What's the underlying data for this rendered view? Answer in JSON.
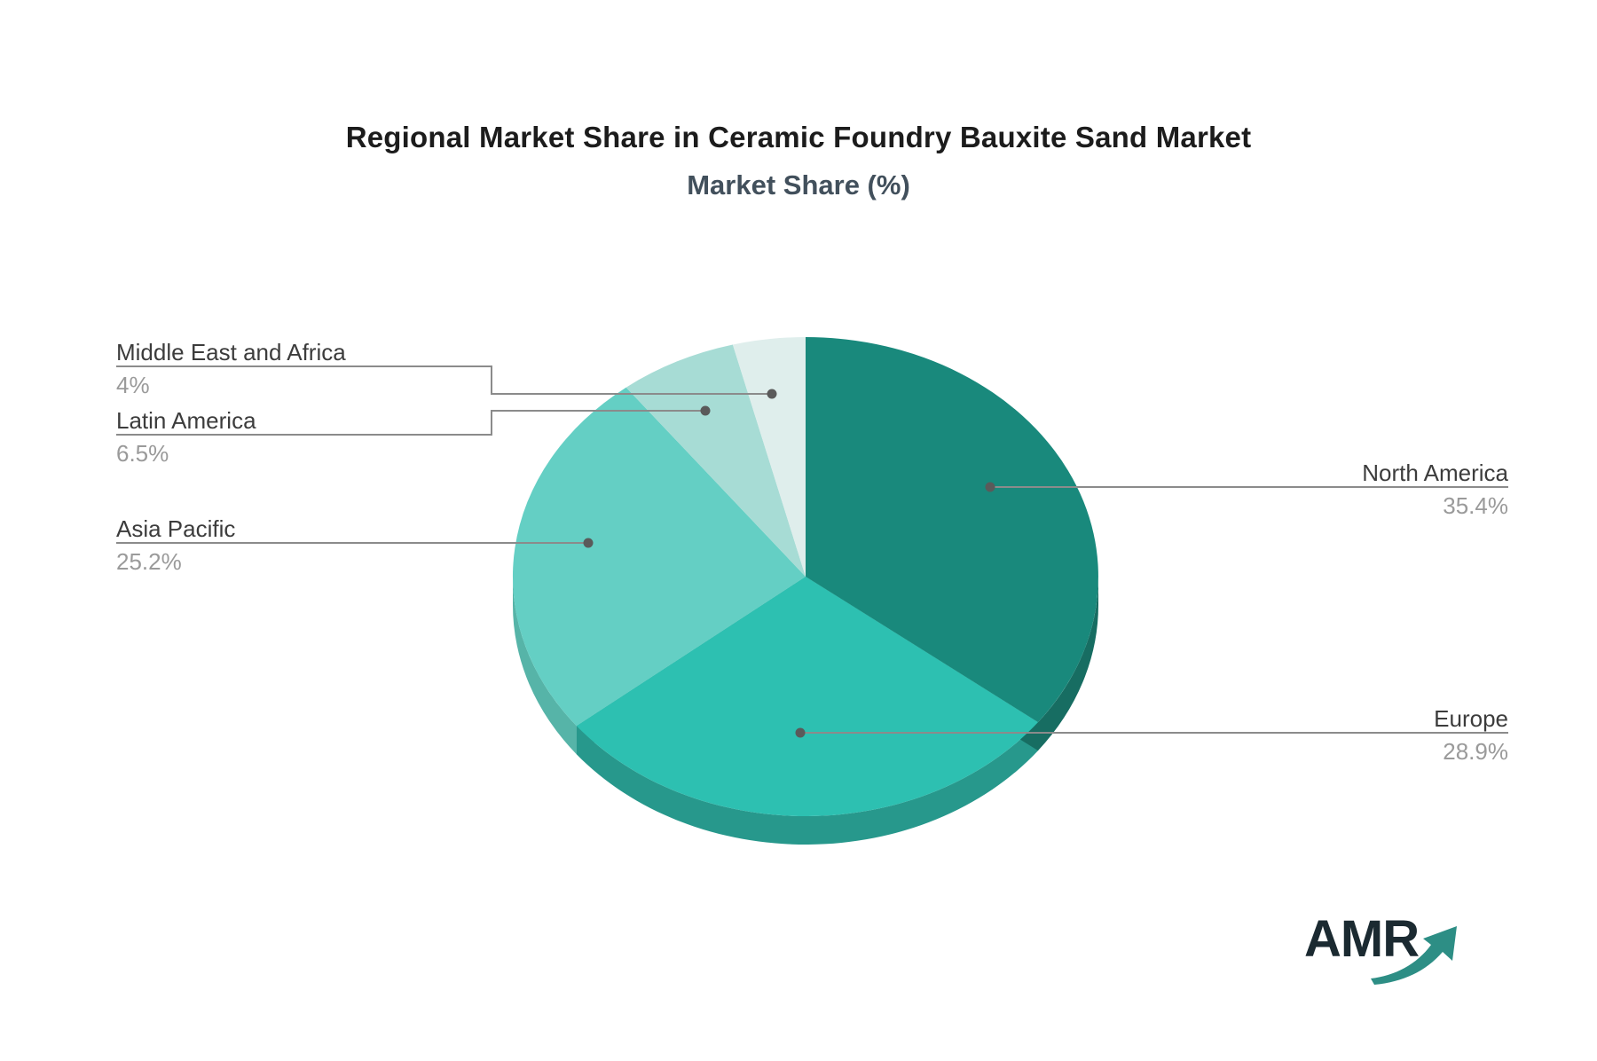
{
  "chart": {
    "title": "Regional Market Share in Ceramic Foundry Bauxite Sand Market",
    "subtitle": "Market Share (%)"
  },
  "chart_data": {
    "type": "pie",
    "title": "Regional Market Share in Ceramic Foundry Bauxite Sand Market",
    "subtitle": "Market Share (%)",
    "unit": "%",
    "effect": "3d",
    "start_angle_deg": 0,
    "direction": "clockwise",
    "slices": [
      {
        "label": "North America",
        "value": 35.4,
        "value_label": "35.4%",
        "color": "#19897c",
        "side_color": "#176d62"
      },
      {
        "label": "Europe",
        "value": 28.9,
        "value_label": "28.9%",
        "color": "#2dc0b1",
        "side_color": "#27988c"
      },
      {
        "label": "Asia Pacific",
        "value": 25.2,
        "value_label": "25.2%",
        "color": "#64cfc4",
        "side_color": "#56b4a8"
      },
      {
        "label": "Latin America",
        "value": 6.5,
        "value_label": "6.5%",
        "color": "#a7dcd5",
        "side_color": "#8fc8c0"
      },
      {
        "label": "Middle East and Africa",
        "value": 4,
        "value_label": "4%",
        "color": "#dfeeec",
        "side_color": "#c5dedb"
      }
    ],
    "legend_position": "callout-labels",
    "colors": {
      "title_text": "#1c1c1c",
      "subtitle_text": "#42505c",
      "label_text": "#3c3c3c",
      "value_text": "#9a9a9a",
      "leader_line": "#8b8b8b",
      "leader_dot": "#5a5a5a",
      "background": "#ffffff"
    }
  },
  "logo": {
    "text": "AMR",
    "arrow_color": "#2d8e85"
  }
}
